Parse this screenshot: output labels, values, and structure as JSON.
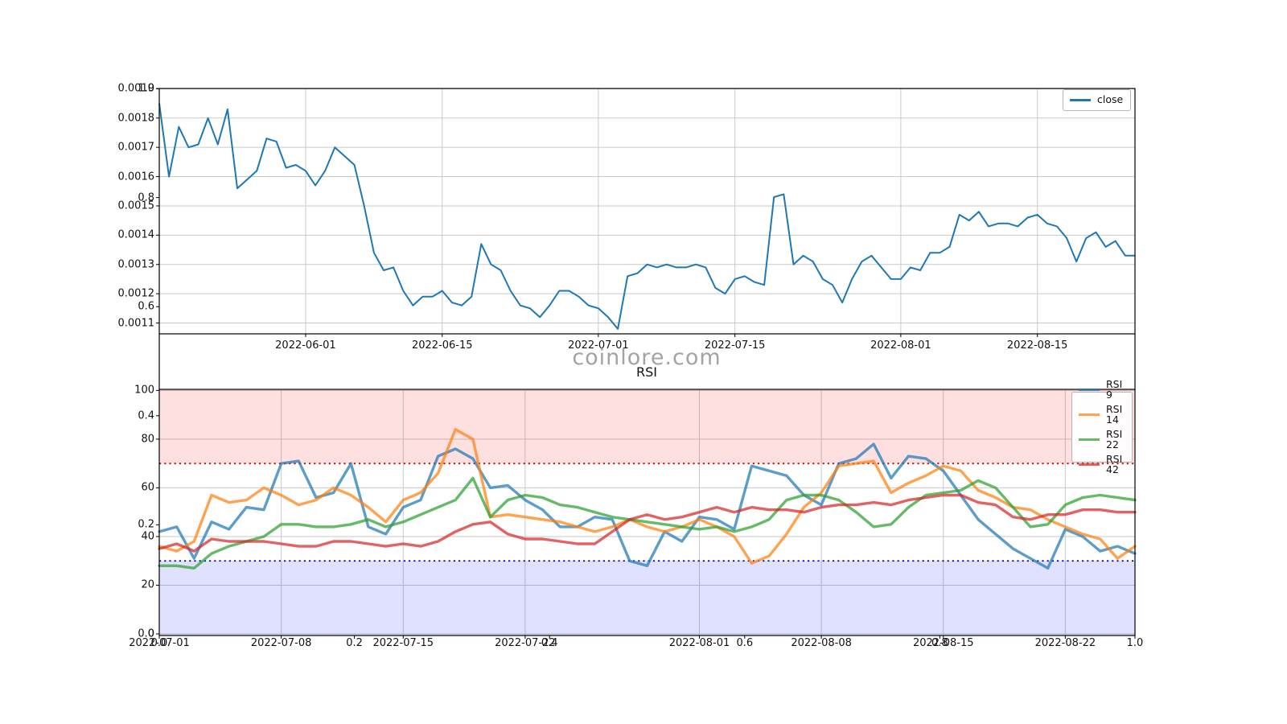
{
  "watermark": {
    "text": "coinlore.com",
    "color": "#a3a3a3"
  },
  "ghost_axis": {
    "x_labels": [
      "0.0",
      "0.2",
      "0.4",
      "0.6",
      "0.8",
      "1.0"
    ],
    "y_labels": [
      "0.0",
      "0.2",
      "0.4",
      "0.6",
      "0.8",
      "1.0"
    ]
  },
  "colors": {
    "close": "#1f77b4",
    "rsi9": "rgba(31,119,180,0.72)",
    "rsi14": "rgba(255,127,14,0.72)",
    "rsi22": "rgba(44,160,44,0.72)",
    "rsi42": "rgba(214,39,40,0.72)",
    "overbought_band": "rgba(255,0,0,0.12)",
    "oversold_band": "rgba(0,0,255,0.12)",
    "overbought_line": "#dd0000",
    "oversold_line": "#0000cc",
    "grid": "#c9c9c9",
    "spine": "#000000"
  },
  "chart_data": [
    {
      "type": "line",
      "title": "",
      "legend": [
        "close"
      ],
      "legend_position": "upper right",
      "grid": true,
      "x_start": "2022-05-17",
      "x_freq_days": 1,
      "x_tick_labels": [
        "2022-06-01",
        "2022-06-15",
        "2022-07-01",
        "2022-07-15",
        "2022-08-01",
        "2022-08-15"
      ],
      "y_tick_labels": [
        "0.0011",
        "0.0012",
        "0.0013",
        "0.0014",
        "0.0015",
        "0.0016",
        "0.0017",
        "0.0018",
        "0.0019"
      ],
      "ylim": [
        0.001063,
        0.001901
      ],
      "series": [
        {
          "name": "close",
          "values": [
            0.00185,
            0.0016,
            0.00177,
            0.0017,
            0.00171,
            0.0018,
            0.00171,
            0.00183,
            0.00156,
            0.00159,
            0.00162,
            0.00173,
            0.00172,
            0.00163,
            0.00164,
            0.00162,
            0.00157,
            0.00162,
            0.0017,
            0.00167,
            0.00164,
            0.0015,
            0.00134,
            0.00128,
            0.00129,
            0.00121,
            0.00116,
            0.00119,
            0.00119,
            0.00121,
            0.00117,
            0.00116,
            0.00119,
            0.00137,
            0.0013,
            0.00128,
            0.00121,
            0.00116,
            0.00115,
            0.00112,
            0.00116,
            0.00121,
            0.00121,
            0.00119,
            0.00116,
            0.00115,
            0.00112,
            0.00108,
            0.00126,
            0.00127,
            0.0013,
            0.00129,
            0.0013,
            0.00129,
            0.00129,
            0.0013,
            0.00129,
            0.00122,
            0.0012,
            0.00125,
            0.00126,
            0.00124,
            0.00123,
            0.00153,
            0.00154,
            0.0013,
            0.00133,
            0.00131,
            0.00125,
            0.00123,
            0.00117,
            0.00125,
            0.00131,
            0.00133,
            0.00129,
            0.00125,
            0.00125,
            0.00129,
            0.00128,
            0.00134,
            0.00134,
            0.00136,
            0.00147,
            0.00145,
            0.00148,
            0.00143,
            0.00144,
            0.00144,
            0.00143,
            0.00146,
            0.00147,
            0.00144,
            0.00143,
            0.00139,
            0.00131,
            0.00139,
            0.00141,
            0.00136,
            0.00138,
            0.00133,
            0.00133
          ]
        }
      ]
    },
    {
      "type": "line",
      "title": "RSI",
      "legend": [
        "RSI 9",
        "RSI 14",
        "RSI 22",
        "RSI 42"
      ],
      "legend_position": "upper right",
      "grid": true,
      "x_start": "2022-07-01",
      "x_freq_days": 1,
      "x_tick_labels": [
        "2022-07-01",
        "2022-07-08",
        "2022-07-15",
        "2022-07-22",
        "2022-08-01",
        "2022-08-08",
        "2022-08-15",
        "2022-08-22"
      ],
      "y_tick_labels": [
        "0",
        "20",
        "40",
        "60",
        "80",
        "100"
      ],
      "ylim": [
        -0.66,
        100.46
      ],
      "overbought_level": 70,
      "oversold_level": 30,
      "series": [
        {
          "name": "RSI 9",
          "values": [
            42,
            44,
            31,
            46,
            43,
            52,
            51,
            70,
            71,
            56,
            58,
            70,
            44,
            41,
            52,
            55,
            73,
            76,
            72,
            60,
            61,
            55,
            51,
            44,
            44,
            48,
            47,
            30,
            28,
            42,
            38,
            48,
            47,
            43,
            69,
            67,
            65,
            57,
            53,
            70,
            72,
            78,
            64,
            73,
            72,
            67,
            57,
            47,
            41,
            35,
            31,
            27,
            43,
            40,
            34,
            36,
            33
          ]
        },
        {
          "name": "RSI 14",
          "values": [
            36,
            34,
            38,
            57,
            54,
            55,
            60,
            57,
            53,
            55,
            60,
            57,
            52,
            46,
            55,
            58,
            66,
            84,
            80,
            48,
            49,
            48,
            47,
            46,
            44,
            42,
            44,
            47,
            44,
            42,
            44,
            47,
            44,
            40,
            29,
            32,
            41,
            52,
            58,
            69,
            70,
            71,
            58,
            62,
            65,
            69,
            67,
            59,
            56,
            52,
            51,
            47,
            44,
            41,
            39,
            31,
            36
          ]
        },
        {
          "name": "RSI 22",
          "values": [
            28,
            28,
            27,
            33,
            36,
            38,
            40,
            45,
            45,
            44,
            44,
            45,
            47,
            44,
            46,
            49,
            52,
            55,
            64,
            48,
            55,
            57,
            56,
            53,
            52,
            50,
            48,
            47,
            46,
            45,
            44,
            43,
            44,
            42,
            44,
            47,
            55,
            57,
            57,
            55,
            50,
            44,
            45,
            52,
            57,
            58,
            59,
            63,
            60,
            52,
            44,
            45,
            53,
            56,
            57,
            56,
            55
          ]
        },
        {
          "name": "RSI 42",
          "values": [
            35,
            37,
            34,
            39,
            38,
            38,
            38,
            37,
            36,
            36,
            38,
            38,
            37,
            36,
            37,
            36,
            38,
            42,
            45,
            46,
            41,
            39,
            39,
            38,
            37,
            37,
            42,
            47,
            49,
            47,
            48,
            50,
            52,
            50,
            52,
            51,
            51,
            50,
            52,
            53,
            53,
            54,
            53,
            55,
            56,
            57,
            57,
            54,
            53,
            48,
            47,
            49,
            49,
            51,
            51,
            50,
            50
          ]
        }
      ]
    }
  ]
}
